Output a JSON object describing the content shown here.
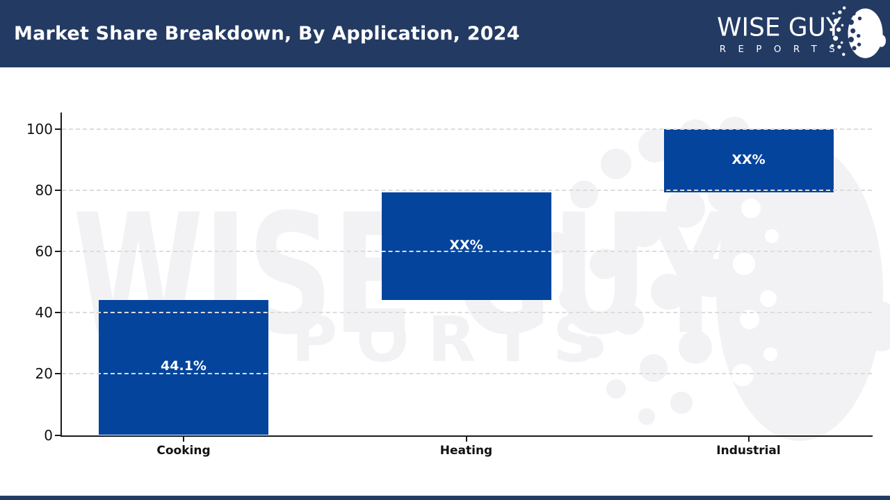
{
  "header": {
    "title": "Market Share Breakdown, By Application, 2024",
    "logo": {
      "line1": "WISE GUY",
      "line2": "REPORTS"
    }
  },
  "watermark": {
    "line1": "WISE GUY",
    "line2": "REPORTS"
  },
  "colors": {
    "header_bg": "#233A63",
    "title_text": "#FFFFFF",
    "bar": "#04449C",
    "bar_label": "#FFFFFF",
    "gridline": "#DCDCDC",
    "axis": "#1A1A1A",
    "watermark": "#F2F2F4"
  },
  "chart_data": {
    "type": "bar",
    "subtype": "waterfall",
    "title": "Market Share Breakdown, By Application, 2024",
    "categories": [
      "Cooking",
      "Heating",
      "Industrial"
    ],
    "segments": [
      {
        "category": "Cooking",
        "start": 0,
        "end": 44.1,
        "label": "44.1%"
      },
      {
        "category": "Heating",
        "start": 44.1,
        "end": 79.3,
        "label": "XX%"
      },
      {
        "category": "Industrial",
        "start": 79.3,
        "end": 100,
        "label": "XX%"
      }
    ],
    "unit": "%",
    "yticks": [
      0,
      20,
      40,
      60,
      80,
      100
    ],
    "ylim": [
      0,
      105
    ],
    "grid": "horizontal-dashed",
    "legend": "none",
    "xlabel": "",
    "ylabel": ""
  }
}
